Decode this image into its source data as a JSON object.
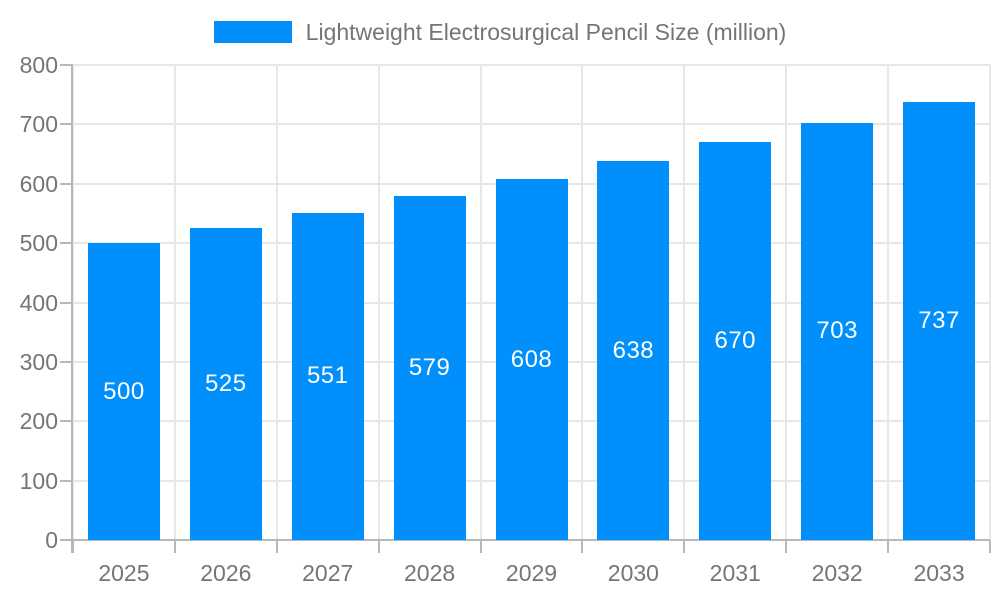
{
  "chart_data": {
    "type": "bar",
    "title": "Lightweight Electrosurgical Pencil Size (million)",
    "legend": {
      "label": "Lightweight Electrosurgical Pencil Size (million)",
      "position": "top"
    },
    "categories": [
      "2025",
      "2026",
      "2027",
      "2028",
      "2029",
      "2030",
      "2031",
      "2032",
      "2033"
    ],
    "values": [
      500,
      525,
      551,
      579,
      608,
      638,
      670,
      703,
      737
    ],
    "xlabel": "",
    "ylabel": "",
    "ylim": [
      0,
      800
    ],
    "ytick_step": 100,
    "yticks": [
      "0",
      "100",
      "200",
      "300",
      "400",
      "500",
      "600",
      "700",
      "800"
    ],
    "grid": true,
    "colors": {
      "bar": "#008FFB",
      "grid": "#e7e7e7",
      "axis": "#b8b8b8",
      "tick_label": "#757575",
      "legend_text": "#757575",
      "data_label": "#ffffff",
      "background": "#ffffff"
    }
  }
}
